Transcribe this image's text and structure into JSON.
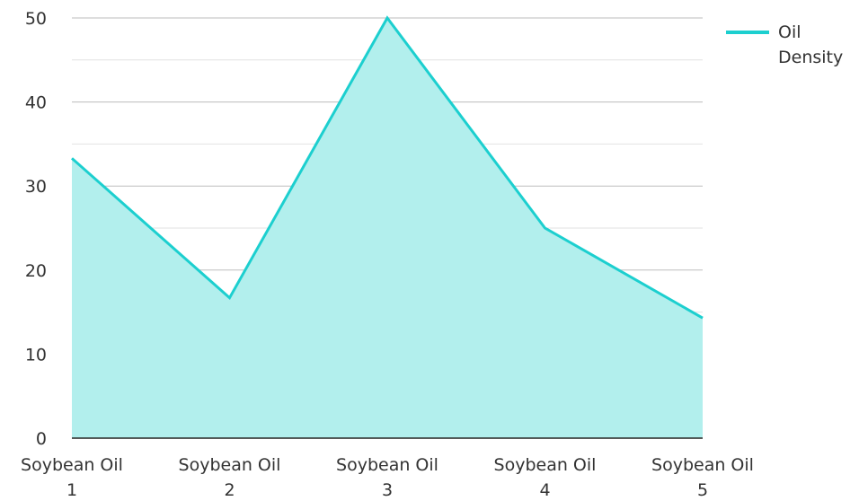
{
  "chart_data": {
    "type": "area",
    "categories": [
      [
        "Soybean Oil",
        "1"
      ],
      [
        "Soybean Oil",
        "2"
      ],
      [
        "Soybean Oil",
        "3"
      ],
      [
        "Soybean Oil",
        "4"
      ],
      [
        "Soybean Oil",
        "5"
      ]
    ],
    "series": [
      {
        "name": "Oil Density",
        "legend_lines": [
          "Oil",
          "Density"
        ],
        "values": [
          33.3,
          16.7,
          50,
          25,
          14.3
        ],
        "color": "#1ccfcf",
        "fill_color": "#b2efed"
      }
    ],
    "yticks": [
      0,
      10,
      20,
      30,
      40,
      50
    ],
    "ylim": [
      0,
      50
    ],
    "grid": true,
    "legend_position": "top-right",
    "title": "",
    "xlabel": "",
    "ylabel": ""
  }
}
